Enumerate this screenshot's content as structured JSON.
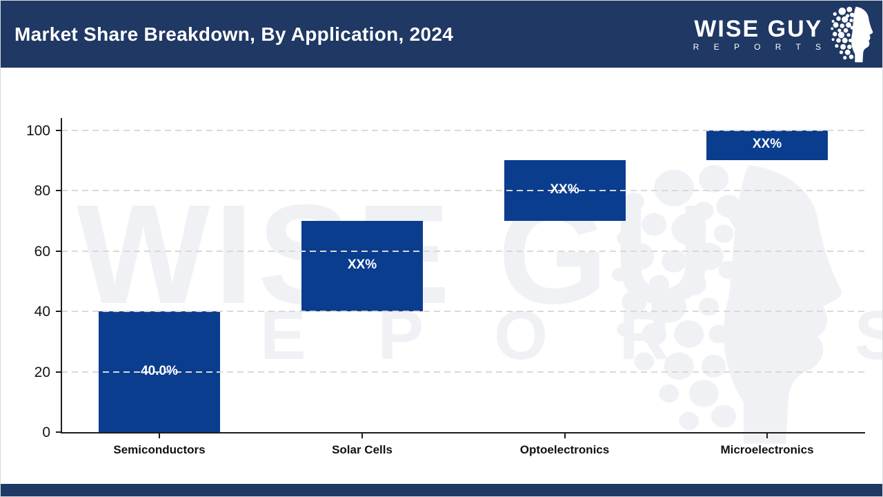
{
  "header": {
    "title": "Market Share Breakdown, By Application, 2024"
  },
  "brand": {
    "name": "WISE GUY",
    "subtitle": "R E P O R T S"
  },
  "watermark": {
    "line1": "WISE GUY",
    "line2": "R E P O R T S"
  },
  "colors": {
    "header_navy": "#1f3864",
    "footer_navy": "#1f3864",
    "watermark_gray": "#f0f1f4",
    "bar_blue": "#0b3d8e"
  },
  "chart_data": {
    "type": "bar",
    "subtype": "waterfall",
    "title": "Market Share Breakdown, By Application, 2024",
    "categories": [
      "Semiconductors",
      "Solar Cells",
      "Optoelectronics",
      "Microelectronics"
    ],
    "segments": [
      {
        "category": "Semiconductors",
        "start": 0,
        "end": 40,
        "label": "40.0%"
      },
      {
        "category": "Solar Cells",
        "start": 40,
        "end": 70,
        "label": "XX%"
      },
      {
        "category": "Optoelectronics",
        "start": 70,
        "end": 90,
        "label": "XX%"
      },
      {
        "category": "Microelectronics",
        "start": 90,
        "end": 100,
        "label": "XX%"
      }
    ],
    "xlabel": "",
    "ylabel": "",
    "ylim": [
      0,
      100
    ],
    "yticks": [
      0,
      20,
      40,
      60,
      80,
      100
    ],
    "grid": "horizontal-dashed-over-bars",
    "legend": "none",
    "bar_color": "#0b3d8e",
    "label_color": "#ffffff",
    "grid_color": "#d9d9d9",
    "axis_color": "#1c1c1c",
    "tick_label_color": "#141414"
  }
}
